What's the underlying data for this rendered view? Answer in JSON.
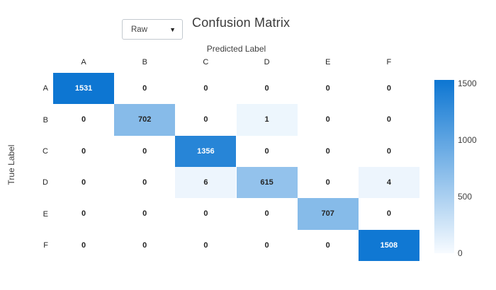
{
  "header": {
    "title": "Confusion Matrix",
    "metric_dropdown": {
      "selected_value": "Raw",
      "arrow_icon": "▼"
    }
  },
  "chart_data": {
    "type": "heatmap",
    "title": "Confusion Matrix",
    "xlabel": "Predicted Label",
    "ylabel": "True Label",
    "x_categories": [
      "A",
      "B",
      "C",
      "D",
      "E",
      "F"
    ],
    "y_categories": [
      "A",
      "B",
      "C",
      "D",
      "E",
      "F"
    ],
    "matrix": [
      [
        1531,
        0,
        0,
        0,
        0,
        0
      ],
      [
        0,
        702,
        0,
        1,
        0,
        0
      ],
      [
        0,
        0,
        1356,
        0,
        0,
        0
      ],
      [
        0,
        0,
        6,
        615,
        0,
        4
      ],
      [
        0,
        0,
        0,
        0,
        707,
        0
      ],
      [
        0,
        0,
        0,
        0,
        0,
        1508
      ]
    ],
    "vmin": 0,
    "vmax": 1531,
    "colorbar_ticks": [
      0,
      500,
      1000,
      1500
    ],
    "colors": {
      "scale_high": "#0d76d2",
      "scale_low": "#f7fbff",
      "zero_cell": "#ffffff",
      "cell_text_dark": "#252525",
      "cell_text_light": "#ffffff"
    },
    "legend_position": "right-colorbar",
    "grid": false
  }
}
